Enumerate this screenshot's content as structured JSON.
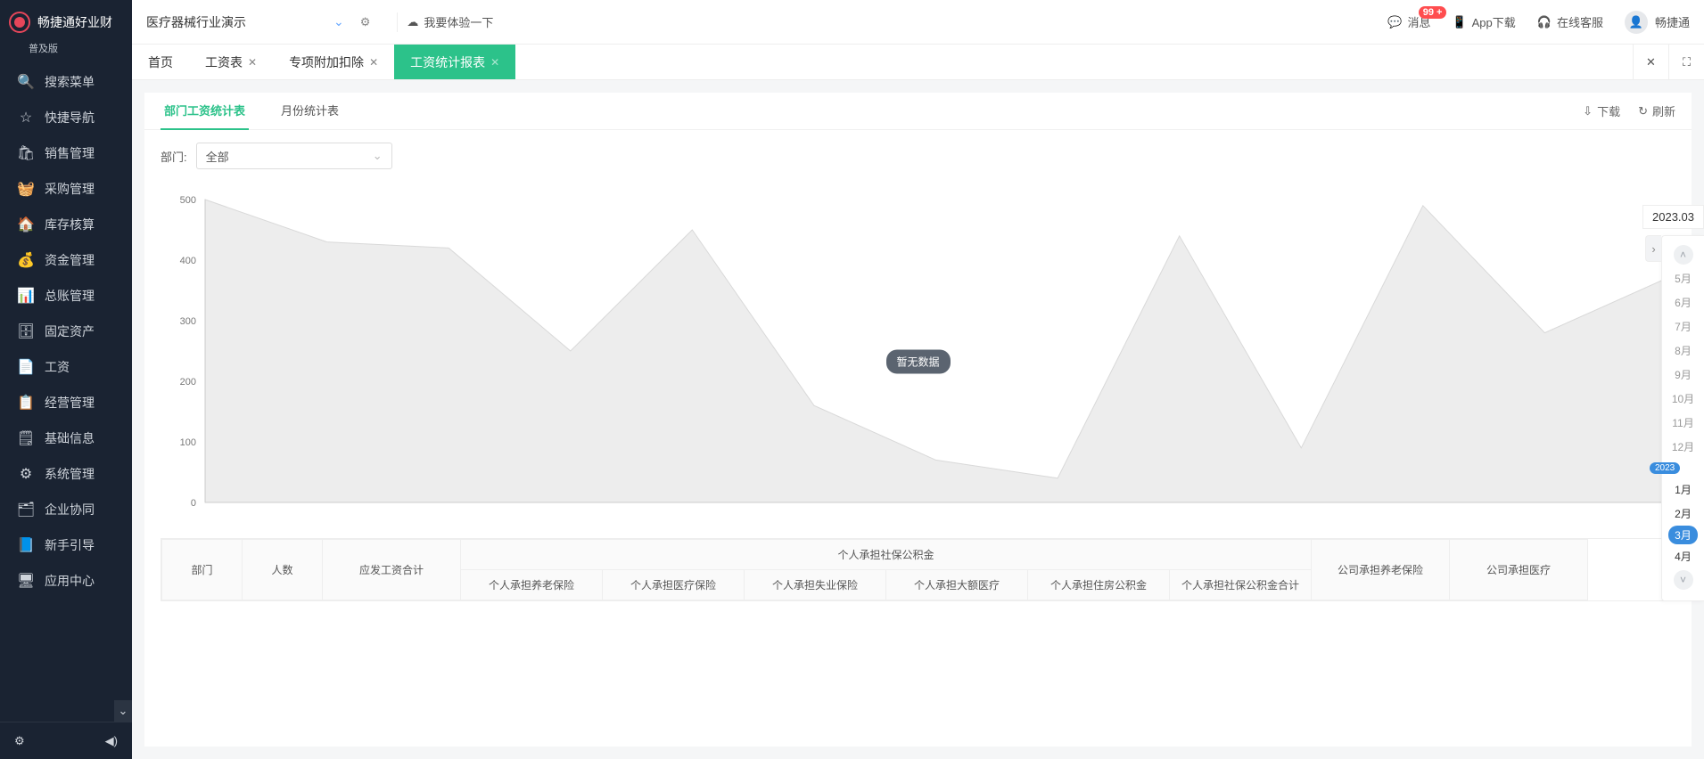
{
  "brand": {
    "name": "畅捷通好业财",
    "edition": "普及版"
  },
  "sidebar": {
    "items": [
      {
        "label": "搜索菜单",
        "icon": "🔍"
      },
      {
        "label": "快捷导航",
        "icon": "☆"
      },
      {
        "label": "销售管理",
        "icon": "🛍"
      },
      {
        "label": "采购管理",
        "icon": "🧺"
      },
      {
        "label": "库存核算",
        "icon": "🏠"
      },
      {
        "label": "资金管理",
        "icon": "💰"
      },
      {
        "label": "总账管理",
        "icon": "📊"
      },
      {
        "label": "固定资产",
        "icon": "🗄"
      },
      {
        "label": "工资",
        "icon": "📄"
      },
      {
        "label": "经营管理",
        "icon": "📋"
      },
      {
        "label": "基础信息",
        "icon": "🗒"
      },
      {
        "label": "系统管理",
        "icon": "⚙"
      },
      {
        "label": "企业协同",
        "icon": "🗂"
      },
      {
        "label": "新手引导",
        "icon": "📘"
      },
      {
        "label": "应用中心",
        "icon": "🖥"
      }
    ]
  },
  "topbar": {
    "org": "医疗器械行业演示",
    "try_text": "我要体验一下",
    "msg_label": "消息",
    "msg_badge": "99 +",
    "app_label": "App下载",
    "cs_label": "在线客服",
    "user": "畅捷通"
  },
  "tabs": [
    {
      "label": "首页",
      "closable": false,
      "active": false
    },
    {
      "label": "工资表",
      "closable": true,
      "active": false
    },
    {
      "label": "专项附加扣除",
      "closable": true,
      "active": false
    },
    {
      "label": "工资统计报表",
      "closable": true,
      "active": true
    }
  ],
  "subtabs": {
    "items": [
      {
        "label": "部门工资统计表",
        "active": true
      },
      {
        "label": "月份统计表",
        "active": false
      }
    ],
    "download": "下载",
    "refresh": "刷新"
  },
  "filter": {
    "label": "部门:",
    "value": "全部"
  },
  "chart": {
    "type": "area",
    "ylim": [
      0,
      500
    ],
    "ytick_step": 100,
    "yticks": [
      "0",
      "100",
      "200",
      "300",
      "400",
      "500"
    ],
    "values": [
      500,
      430,
      420,
      250,
      450,
      160,
      70,
      40,
      440,
      90,
      490,
      280,
      370
    ],
    "fill_color": "#ededed",
    "line_color": "#d9d9d9",
    "axis_color": "#cccccc",
    "tick_color": "#777777",
    "background": "#ffffff",
    "no_data_text": "暂无数据"
  },
  "table": {
    "group_header": "个人承担社保公积金",
    "cols_left": [
      "部门",
      "人数",
      "应发工资合计"
    ],
    "cols_group": [
      "个人承担养老保险",
      "个人承担医疗保险",
      "个人承担失业保险",
      "个人承担大额医疗",
      "个人承担住房公积金",
      "个人承担社保公积金合计"
    ],
    "cols_right": [
      "公司承担养老保险",
      "公司承担医疗"
    ]
  },
  "time_rail": {
    "current": "2023.03",
    "year_badge": "2023",
    "months_gray": [
      "5月",
      "6月",
      "7月",
      "8月",
      "9月",
      "10月",
      "11月",
      "12月"
    ],
    "months_dark": [
      "1月",
      "2月",
      "3月",
      "4月"
    ],
    "active_month": "3月"
  }
}
